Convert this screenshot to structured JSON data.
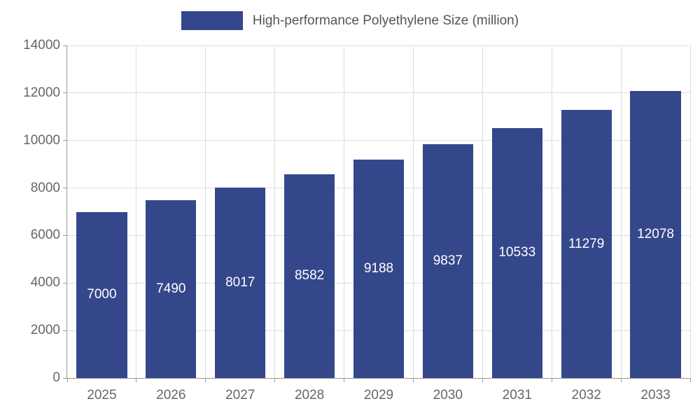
{
  "chart_data": {
    "type": "bar",
    "title": "High-performance Polyethylene Size (million)",
    "categories": [
      "2025",
      "2026",
      "2027",
      "2028",
      "2029",
      "2030",
      "2031",
      "2032",
      "2033"
    ],
    "values": [
      7000,
      7490,
      8017,
      8582,
      9188,
      9837,
      10533,
      11279,
      12078
    ],
    "xlabel": "",
    "ylabel": "",
    "ylim": [
      0,
      14000
    ],
    "yticks": [
      0,
      2000,
      4000,
      6000,
      8000,
      10000,
      12000,
      14000
    ],
    "grid": true,
    "legend_position": "top",
    "colors": {
      "bar": "#34478b",
      "bar_label": "#ffffff",
      "axis": "#999999",
      "gridline": "#dddddd",
      "tick_text": "#666666",
      "legend_text": "#555555"
    }
  }
}
